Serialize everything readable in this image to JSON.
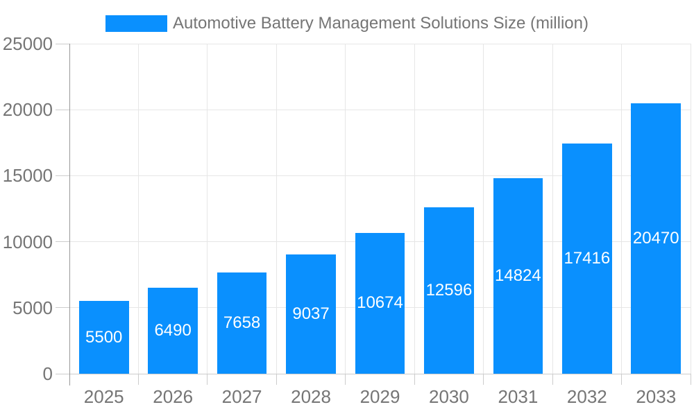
{
  "chart_data": {
    "type": "bar",
    "title": "Automotive Battery Management Solutions Size (million)",
    "categories": [
      "2025",
      "2026",
      "2027",
      "2028",
      "2029",
      "2030",
      "2031",
      "2032",
      "2033"
    ],
    "series": [
      {
        "name": "Automotive Battery Management Solutions Size (million)",
        "values": [
          5500,
          6490,
          7658,
          9037,
          10674,
          12596,
          14824,
          17416,
          20470
        ]
      }
    ],
    "bar_labels": [
      "5500",
      "6490",
      "7658",
      "9037",
      "10674",
      "12596",
      "14824",
      "17416",
      "20470"
    ],
    "xlabel": "",
    "ylabel": "",
    "ylim": [
      0,
      25000
    ],
    "yticks": [
      0,
      5000,
      10000,
      15000,
      20000,
      25000
    ],
    "ytick_labels": [
      "0",
      "5000",
      "10000",
      "15000",
      "20000",
      "25000"
    ],
    "grid": true,
    "legend_position": "top",
    "colors": {
      "bar": "#0a90fe",
      "bar_label_text": "#ffffff",
      "axis_text": "#757575",
      "grid_line": "#e6e6e6",
      "zero_line": "#cccccc",
      "axis_line": "#999999",
      "tick": "#cccccc",
      "background": "#ffffff"
    }
  }
}
